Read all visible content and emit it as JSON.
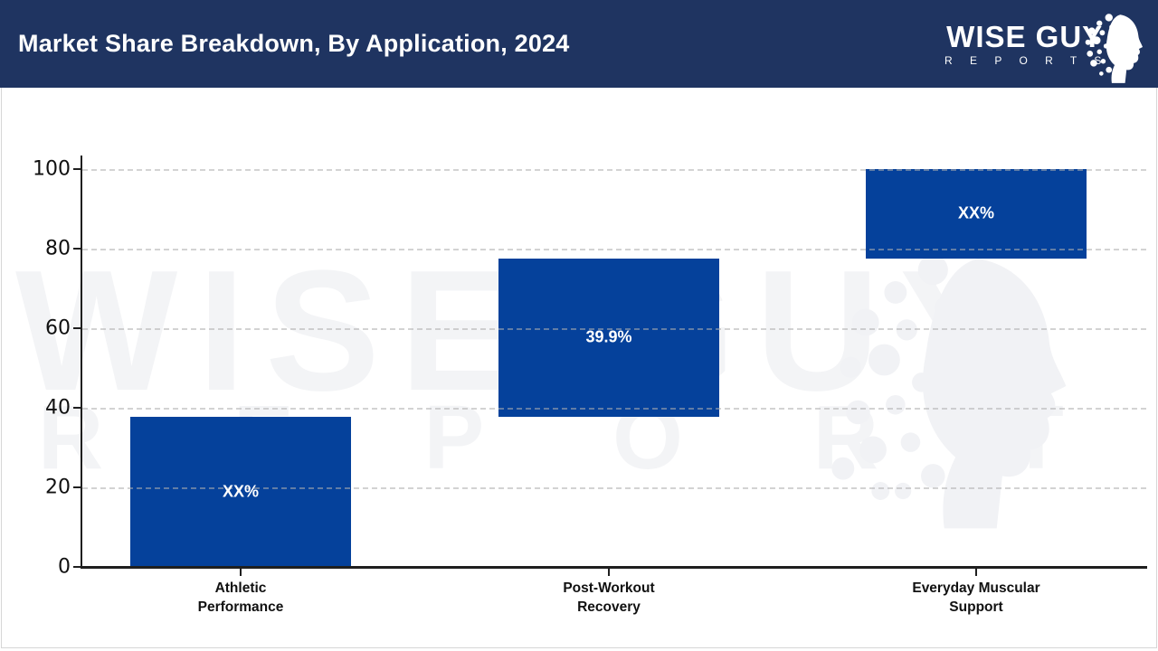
{
  "header": {
    "title": "Market Share Breakdown, By Application, 2024",
    "logo": {
      "name": "WISE GUY",
      "sub": "R E P O R T S"
    }
  },
  "watermark": {
    "big": "WISE GUY",
    "sub": "R E P O R T S"
  },
  "colors": {
    "header_bg": "#1f3461",
    "bar": "#05419b",
    "axis": "#1f1f1f",
    "grid": "#d9d9d9"
  },
  "chart_data": {
    "type": "bar",
    "subtype": "waterfall-stacked-to-100",
    "title": "Market Share Breakdown, By Application, 2024",
    "categories": [
      "Athletic Performance",
      "Post-Workout Recovery",
      "Everyday Muscular Support"
    ],
    "category_lines": [
      [
        "Athletic",
        "Performance"
      ],
      [
        "Post-Workout",
        "Recovery"
      ],
      [
        "Everyday Muscular",
        "Support"
      ]
    ],
    "segments": [
      {
        "category": "Athletic Performance",
        "label_shown": "XX%",
        "start": 0,
        "end": 37.7,
        "value_est": 37.7
      },
      {
        "category": "Post-Workout Recovery",
        "label_shown": "39.9%",
        "start": 37.7,
        "end": 77.6,
        "value_est": 39.9
      },
      {
        "category": "Everyday Muscular Support",
        "label_shown": "XX%",
        "start": 77.6,
        "end": 100,
        "value_est": 22.4
      }
    ],
    "yticks": [
      0,
      20,
      40,
      60,
      80,
      100
    ],
    "ylim": [
      0,
      100
    ],
    "xlabel": "",
    "ylabel": "",
    "legend": "none",
    "grid": "horizontal-dashed",
    "bar_color": "#05419b"
  }
}
